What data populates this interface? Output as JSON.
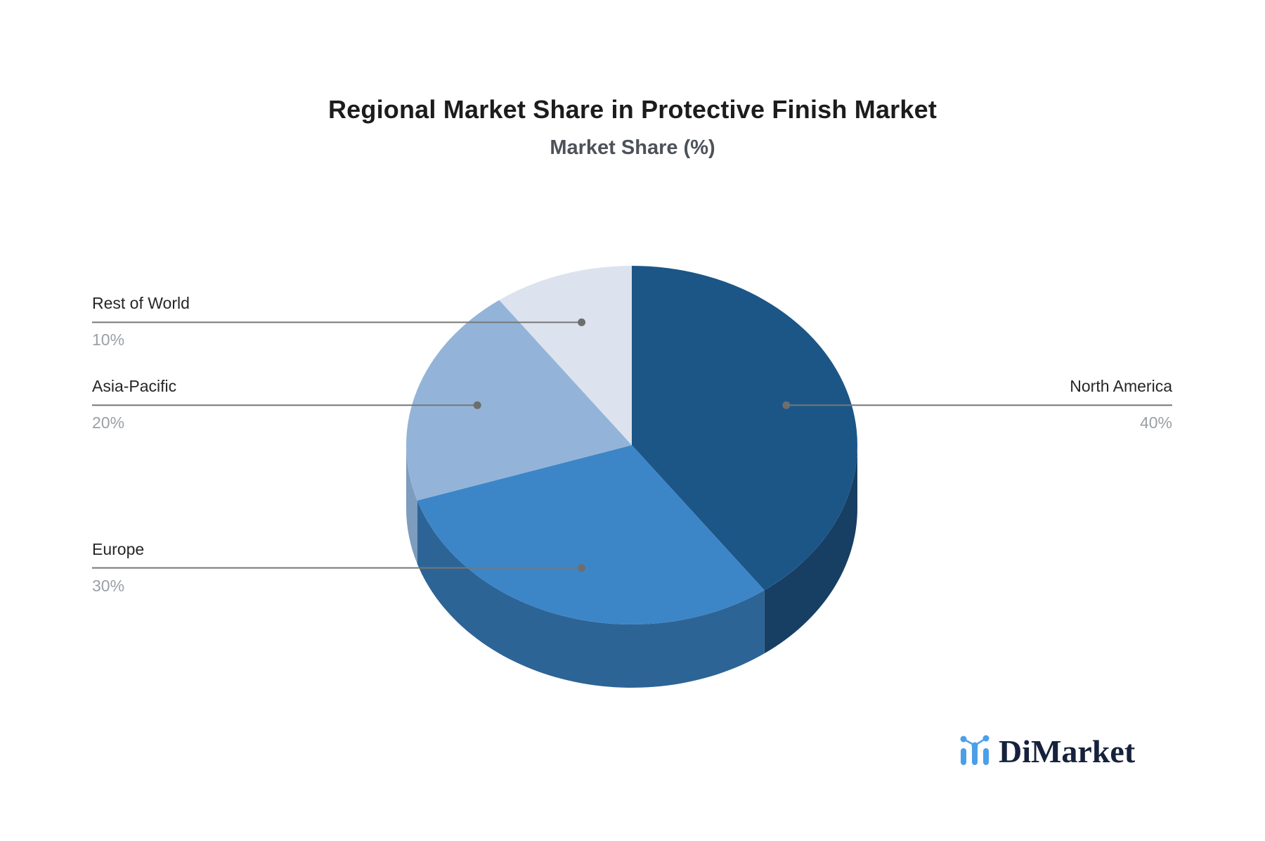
{
  "header": {
    "title": "Regional Market Share in Protective Finish Market",
    "subtitle": "Market Share (%)"
  },
  "chart_data": {
    "type": "pie",
    "title": "Regional Market Share in Protective Finish Market",
    "subtitle": "Market Share (%)",
    "unit": "%",
    "effect": "3d",
    "start_angle_deg": 0,
    "direction": "clockwise",
    "legend_position": "none",
    "label_style": "leader-lines",
    "slices": [
      {
        "label": "North America",
        "value": 40,
        "display": "40%",
        "color": "#1c5687",
        "side_color": "#173f63",
        "label_side": "right"
      },
      {
        "label": "Europe",
        "value": 30,
        "display": "30%",
        "color": "#3c86c8",
        "side_color": "#2d6496",
        "label_side": "left"
      },
      {
        "label": "Asia-Pacific",
        "value": 20,
        "display": "20%",
        "color": "#93b4d8",
        "side_color": "#7d9cbe",
        "label_side": "left"
      },
      {
        "label": "Rest of World",
        "value": 10,
        "display": "10%",
        "color": "#dce3ee",
        "side_color": "#b9c6d8",
        "label_side": "left"
      }
    ]
  },
  "colors": {
    "background": "#ffffff",
    "title_text": "#1c1c1c",
    "subtitle_text": "#4d5159",
    "label_text": "#262626",
    "value_text": "#9aa0a6",
    "leader_line": "#777777",
    "leader_dot": "#6e6e6e"
  },
  "branding": {
    "logo_text": "DiMarket",
    "logo_icon": "bar-line-chart-icon",
    "logo_text_color": "#16223c",
    "logo_icon_color": "#4b9fe9"
  }
}
